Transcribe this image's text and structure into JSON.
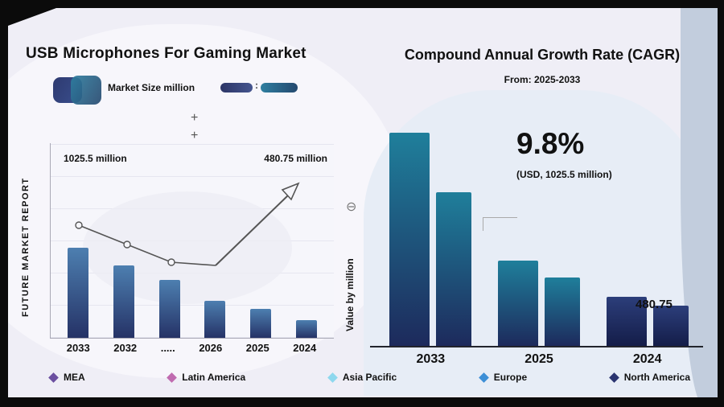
{
  "page": {
    "left_title": "USB Microphones For Gaming Market",
    "legend_label": "Market Size million",
    "side_text": "FUTURE MARKET REPORT",
    "right_title": "Compound Annual Growth Rate (CAGR)",
    "right_subtitle": "From: 2025-2033",
    "cagr_value": "9.8%",
    "cagr_note": "(USD, 1025.5 million)",
    "value_axis_label": "Value by million",
    "annotation_2024_value": "480.75",
    "plus_glyph": "+",
    "minus_circle_glyph": "⊖",
    "colon": ":"
  },
  "left_chart_annotations": {
    "top_left": "1025.5 million",
    "top_right": "480.75 million"
  },
  "chart_data": [
    {
      "type": "bar",
      "title": "USB Microphones For Gaming Market",
      "legend": "Market Size million",
      "categories": [
        "2033",
        "2032",
        ".....",
        "2026",
        "2025",
        "2024"
      ],
      "values_relative_pct": [
        100,
        80,
        64,
        41,
        32,
        20
      ],
      "annotations": [
        "1025.5 million at 2033",
        "480.75 million at 2024"
      ],
      "ylabel": "",
      "axis_ticks": "none",
      "grid": "horizontal",
      "note": "stylized declining bars with trend line rising into an arrow"
    },
    {
      "type": "bar",
      "title": "Compound Annual Growth Rate (CAGR)",
      "subtitle": "From: 2025-2033",
      "categories": [
        "2033",
        "2025",
        "2024"
      ],
      "series": [
        {
          "name": "primary",
          "values_relative_pct": [
            100,
            40,
            23
          ]
        },
        {
          "name": "secondary",
          "values_relative_pct": [
            72,
            32,
            19
          ]
        }
      ],
      "annotations": [
        "9.8% (USD, 1025.5 million)",
        "480.75 at 2024"
      ],
      "ylabel": "Value by million",
      "axis_ticks": "none"
    }
  ],
  "region_legend": {
    "items": [
      {
        "label": "MEA",
        "color": "#6b4fa0"
      },
      {
        "label": "Latin America",
        "color": "#c06bb0"
      },
      {
        "label": "Asia Pacific",
        "color": "#8ed8ee"
      },
      {
        "label": "Europe",
        "color": "#3d8fd6"
      },
      {
        "label": "North America",
        "color": "#2a3470"
      }
    ]
  },
  "colors": {
    "left_bar_top": "#4d7fb0",
    "left_bar_bottom": "#253266",
    "right_bar_top": "#1f7f9b",
    "right_bar_bottom": "#1d2a5c",
    "right_bar_dark_top": "#2c3e7a",
    "right_bar_dark_bottom": "#141d49",
    "background": "#efeef6",
    "frame": "#0b0b0b"
  }
}
